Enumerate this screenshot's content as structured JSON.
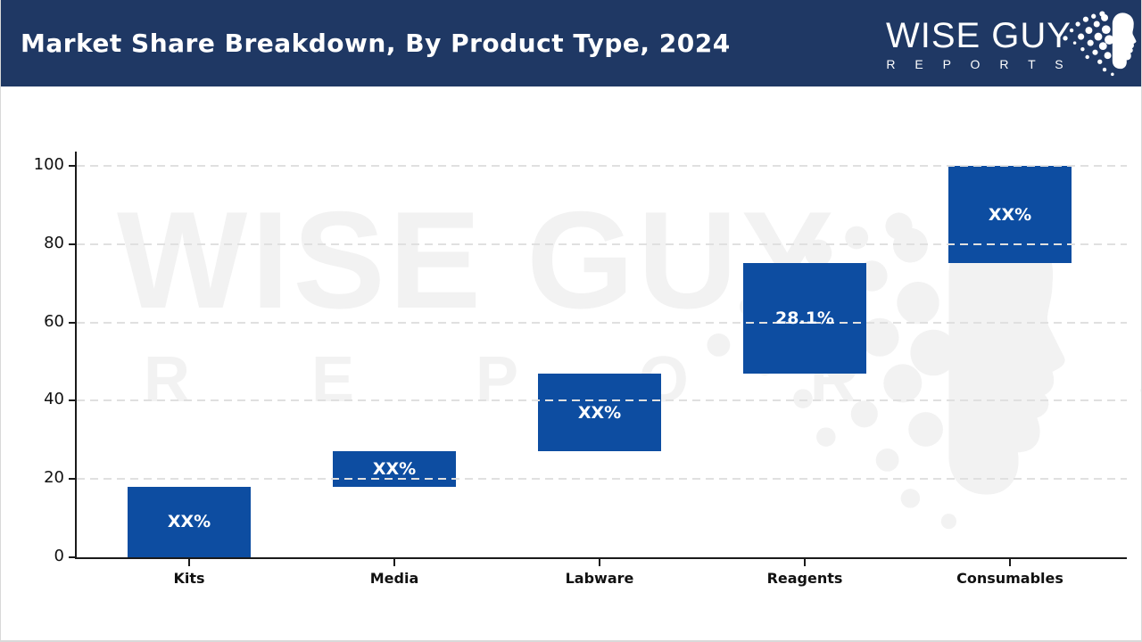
{
  "header": {
    "title": "Market Share Breakdown, By Product Type, 2024",
    "bg_color": "#1f3864",
    "logo": {
      "wordmark": "WISE GUY",
      "subtext": "R E P O R T S"
    }
  },
  "watermark": {
    "wordmark": "WISE GUY",
    "subtext": "R E P O R T S"
  },
  "chart_data": {
    "type": "bar",
    "subtype": "waterfall",
    "title": "Market Share Breakdown, By Product Type, 2024",
    "categories": [
      "Kits",
      "Media",
      "Labware",
      "Reagents",
      "Consumables"
    ],
    "segments": [
      {
        "category": "Kits",
        "start": 0,
        "end": 18,
        "label": "XX%"
      },
      {
        "category": "Media",
        "start": 18,
        "end": 27,
        "label": "XX%"
      },
      {
        "category": "Labware",
        "start": 27,
        "end": 47,
        "label": "XX%"
      },
      {
        "category": "Reagents",
        "start": 47,
        "end": 75.1,
        "label": "28.1%"
      },
      {
        "category": "Consumables",
        "start": 75.1,
        "end": 100,
        "label": "XX%"
      }
    ],
    "yticks": [
      0,
      20,
      40,
      60,
      80,
      100
    ],
    "ylim": [
      0,
      100
    ],
    "xlabel": "",
    "ylabel": "",
    "grid": "horizontal-dashed",
    "legend": "none",
    "bar_color": "#0d4da1",
    "bar_label_color": "#ffffff",
    "grid_color": "#e0e0e0",
    "axis_color": "#1a1a1a"
  }
}
